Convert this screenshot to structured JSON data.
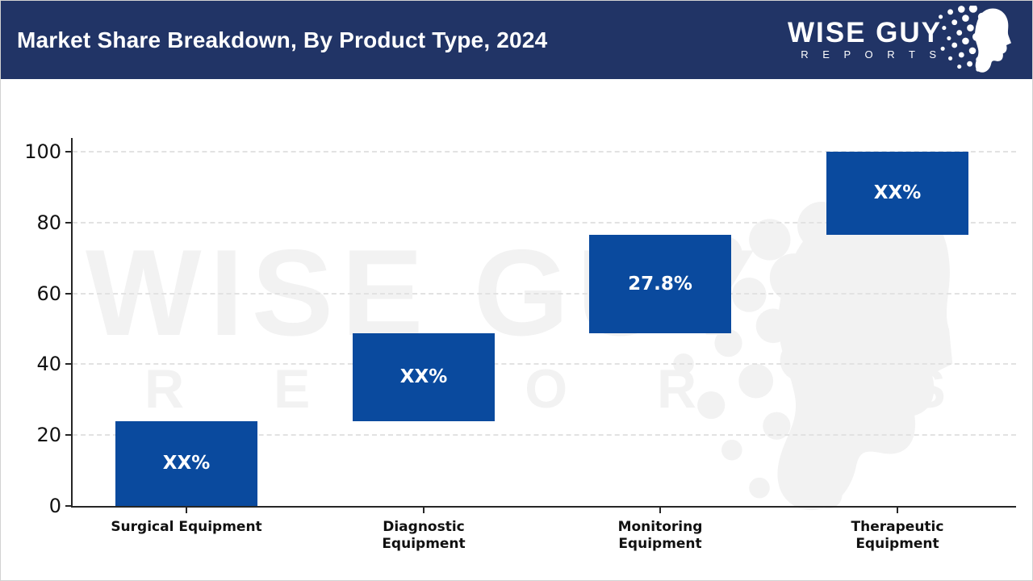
{
  "header": {
    "title": "Market Share Breakdown, By Product Type, 2024",
    "brand": {
      "name": "WISE GUY",
      "tagline": "R E P O R T S"
    }
  },
  "watermark": {
    "line1": "WISE GUY",
    "line2": "R E P O R T S"
  },
  "chart_data": {
    "type": "bar",
    "subtype": "floating-waterfall-segments",
    "title": "Market Share Breakdown, By Product Type, 2024",
    "categories": [
      "Surgical Equipment",
      "Diagnostic Equipment",
      "Monitoring Equipment",
      "Therapeutic Equipment"
    ],
    "category_label_lines": [
      [
        "Surgical Equipment"
      ],
      [
        "Diagnostic",
        "Equipment"
      ],
      [
        "Monitoring",
        "Equipment"
      ],
      [
        "Therapeutic",
        "Equipment"
      ]
    ],
    "bars": [
      {
        "category": "Surgical Equipment",
        "start": 0,
        "end": 24,
        "label": "XX%"
      },
      {
        "category": "Diagnostic Equipment",
        "start": 24,
        "end": 48.8,
        "label": "XX%"
      },
      {
        "category": "Monitoring Equipment",
        "start": 48.8,
        "end": 76.6,
        "label": "27.8%"
      },
      {
        "category": "Therapeutic Equipment",
        "start": 76.6,
        "end": 100,
        "label": "XX%"
      }
    ],
    "xlabel": "",
    "ylabel": "",
    "ylim": [
      0,
      100
    ],
    "yticks": [
      0,
      20,
      40,
      60,
      80,
      100
    ],
    "grid": {
      "horizontal": true,
      "style": "dashed"
    },
    "legend": null,
    "colors": {
      "bar": "#0a4a9e",
      "bar_label": "#ffffff",
      "grid": "#e2e2e2",
      "axis": "#262626",
      "tick_label": "#111111",
      "header_bg": "#213466",
      "header_text": "#ffffff",
      "watermark": "#f2f2f2",
      "page_border": "#d2d2d2"
    }
  }
}
